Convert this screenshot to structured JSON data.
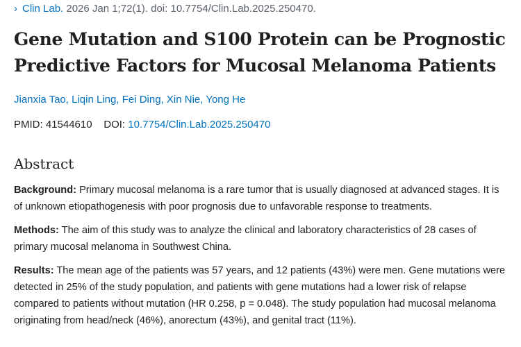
{
  "citation": {
    "journal": "Clin Lab.",
    "details": "2026 Jan 1;72(1). doi: 10.7754/Clin.Lab.2025.250470."
  },
  "article": {
    "title": "Gene Mutation and S100 Protein can be Prognostic Predictive Factors for Mucosal Melanoma Patients",
    "authors": [
      "Jianxia Tao",
      "Liqin Ling",
      "Fei Ding",
      "Xin Nie",
      "Yong He"
    ],
    "pmid_label": "PMID:",
    "pmid": "41544610",
    "doi_label": "DOI:",
    "doi": "10.7754/Clin.Lab.2025.250470"
  },
  "abstract": {
    "heading": "Abstract",
    "sections": [
      {
        "label": "Background:",
        "text": "Primary mucosal melanoma is a rare tumor that is usually diagnosed at advanced stages. It is of unknown etiopathogenesis with poor prognosis due to unfavorable response to treatments."
      },
      {
        "label": "Methods:",
        "text": "The aim of this study was to analyze the clinical and laboratory characteristics of 28 cases of primary mucosal melanoma in Southwest China."
      },
      {
        "label": "Results:",
        "text": "The mean age of the patients was 57 years, and 12 patients (43%) were men. Gene mutations were detected in 25% of the study population, and patients with gene mutations had a lower risk of relapse compared to patients without mutation (HR 0.258, p = 0.048). The study population had mucosal melanoma originating from head/neck (46%), anorectum (43%), and genital tract (11%)."
      }
    ]
  },
  "colors": {
    "link": "#0071bc",
    "text": "#212121",
    "muted": "#5b616b"
  }
}
